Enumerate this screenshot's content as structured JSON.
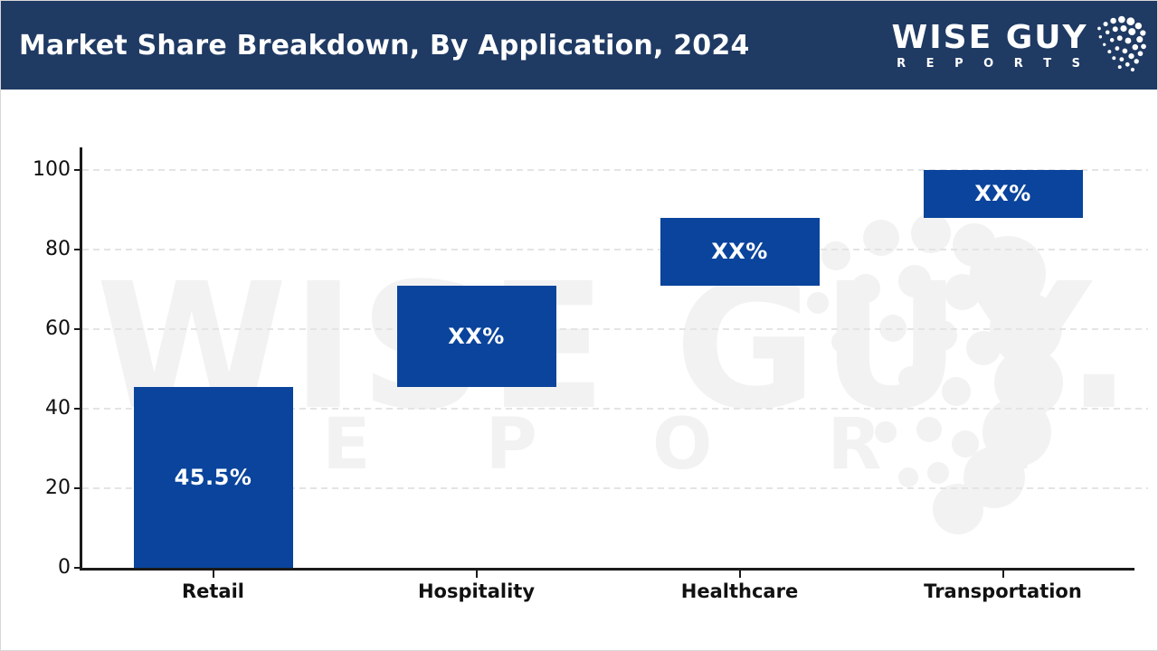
{
  "header": {
    "title": "Market Share Breakdown, By Application, 2024",
    "logo": {
      "line1": "WISE GUY",
      "line2": "R E P O R T S"
    }
  },
  "watermark": {
    "line1": "WISE GUY.",
    "line2": "R E P O R T S"
  },
  "chart_data": {
    "type": "bar",
    "subtype": "waterfall",
    "title": "Market Share Breakdown, By Application, 2024",
    "categories": [
      "Retail",
      "Hospitality",
      "Healthcare",
      "Transportation"
    ],
    "segments": [
      {
        "category": "Retail",
        "start": 0,
        "end": 45.5,
        "label": "45.5%"
      },
      {
        "category": "Hospitality",
        "start": 45.5,
        "end": 71,
        "label": "XX%"
      },
      {
        "category": "Healthcare",
        "start": 71,
        "end": 88,
        "label": "XX%"
      },
      {
        "category": "Transportation",
        "start": 88,
        "end": 100,
        "label": "XX%"
      }
    ],
    "xlabel": "",
    "ylabel": "",
    "yticks": [
      0,
      20,
      40,
      60,
      80,
      100
    ],
    "ylim": [
      0,
      105.7
    ],
    "grid": "horizontal-dashed",
    "legend": "none",
    "bar_color": "#0a449c",
    "bar_label_color": "#ffffff"
  },
  "colors": {
    "header_bg": "#1f3a63",
    "bar": "#0a449c",
    "grid": "#e4e4e4",
    "axis": "#1a1a1a",
    "text": "#111111",
    "watermark": "#f2f2f2",
    "border": "#d8d8d8"
  }
}
